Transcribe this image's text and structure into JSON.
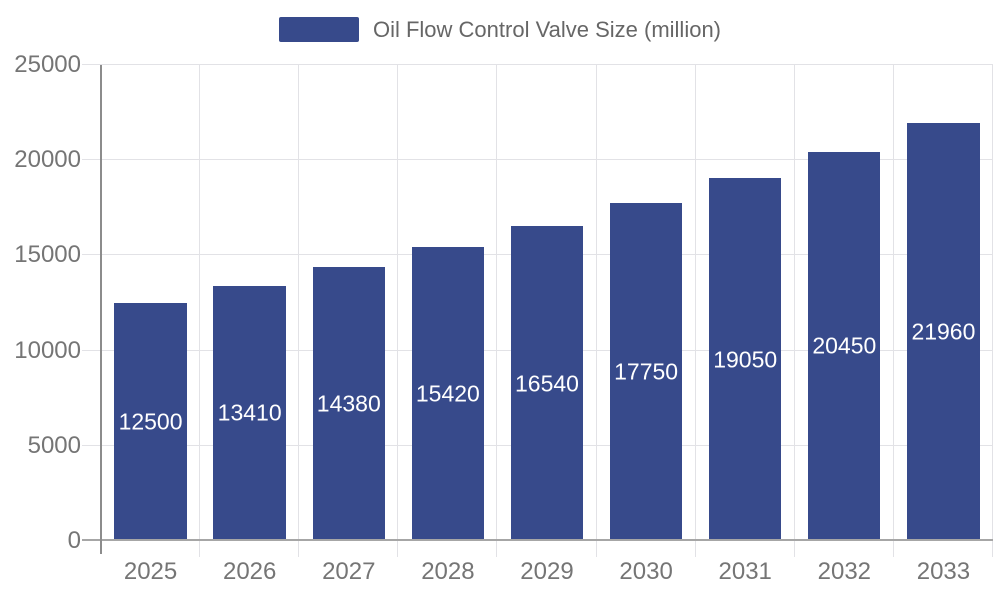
{
  "chart_data": {
    "type": "bar",
    "title": "Oil Flow Control Valve Size (million)",
    "series_label": "Oil Flow Control Valve Size (million)",
    "categories": [
      "2025",
      "2026",
      "2027",
      "2028",
      "2029",
      "2030",
      "2031",
      "2032",
      "2033"
    ],
    "values": [
      12500,
      13410,
      14380,
      15420,
      16540,
      17750,
      19050,
      20450,
      21960
    ],
    "xlabel": "",
    "ylabel": "",
    "ylim": [
      0,
      25000
    ],
    "yticks": [
      0,
      5000,
      10000,
      15000,
      20000,
      25000
    ],
    "grid": true,
    "legend_position": "top-center",
    "colors": {
      "bar": "#374A8B",
      "bar_value_text": "#FFFFFF",
      "axis_text": "#757575",
      "legend_text": "#666666",
      "gridline": "#E2E2E6",
      "baseline": "#A6A6A6",
      "y_axis_line": "#8C8C8C",
      "background": "#FFFFFF"
    }
  }
}
